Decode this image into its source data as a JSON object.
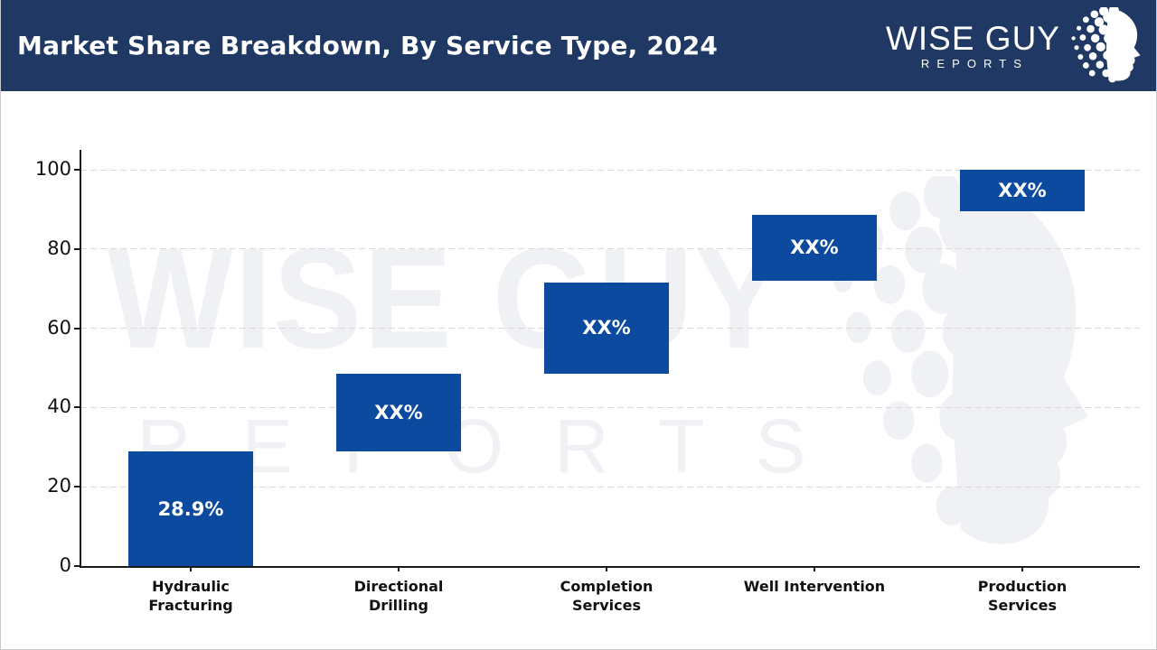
{
  "header": {
    "title": "Market Share Breakdown, By Service Type, 2024",
    "logo": {
      "name": "WISE GUY",
      "sub": "REPORTS"
    }
  },
  "watermark": {
    "line1": "WISE GUY",
    "line2": "REPORTS"
  },
  "colors": {
    "header_bg": "#1f3864",
    "bar": "#0b4a9e",
    "bar_label": "#ffffff",
    "grid": "#d9d9d9",
    "axis": "#1a1a1a",
    "watermark": "#eff1f4",
    "frame": "#c9c9c9"
  },
  "chart_data": {
    "type": "bar",
    "subtype": "waterfall",
    "title": "Market Share Breakdown, By Service Type, 2024",
    "categories": [
      "Hydraulic Fracturing",
      "Directional Drilling",
      "Completion Services",
      "Well Intervention",
      "Production Services"
    ],
    "category_label_lines": [
      [
        "Hydraulic",
        "Fracturing"
      ],
      [
        "Directional",
        "Drilling"
      ],
      [
        "Completion",
        "Services"
      ],
      [
        "Well Intervention"
      ],
      [
        "Production",
        "Services"
      ]
    ],
    "segments": [
      {
        "category": "Hydraulic Fracturing",
        "start": 0,
        "end": 28.9,
        "value_label": "28.9%"
      },
      {
        "category": "Directional Drilling",
        "start": 28.9,
        "end": 48.6,
        "value_label": "XX%"
      },
      {
        "category": "Completion Services",
        "start": 48.6,
        "end": 71.6,
        "value_label": "XX%"
      },
      {
        "category": "Well Intervention",
        "start": 71.9,
        "end": 88.7,
        "value_label": "XX%"
      },
      {
        "category": "Production Services",
        "start": 89.5,
        "end": 100,
        "value_label": "XX%"
      }
    ],
    "yticks": [
      0,
      20,
      40,
      60,
      80,
      100
    ],
    "ylim": [
      0,
      105
    ],
    "grid": {
      "axis": "y",
      "style": "dashed"
    },
    "legend": "none"
  }
}
